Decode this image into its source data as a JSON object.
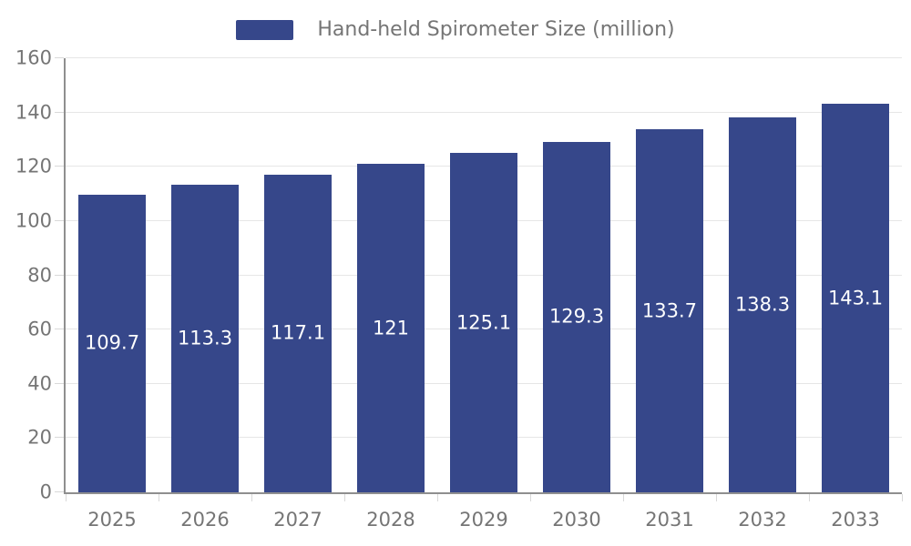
{
  "chart_data": {
    "type": "bar",
    "title": "Hand-held Spirometer Size (million)",
    "legend_position": "top",
    "categories": [
      "2025",
      "2026",
      "2027",
      "2028",
      "2029",
      "2030",
      "2031",
      "2032",
      "2033"
    ],
    "series": [
      {
        "name": "Hand-held Spirometer Size (million)",
        "values": [
          109.7,
          113.3,
          117.1,
          121,
          125.1,
          129.3,
          133.7,
          138.3,
          143.1
        ]
      }
    ],
    "value_labels": true,
    "xlabel": "",
    "ylabel": "",
    "ylim": [
      0,
      160
    ],
    "ytick_step": 20,
    "grid": true,
    "colors": {
      "bar": "#36478A",
      "value_label": "#FFFFFF",
      "axis_text": "#757575",
      "gridline": "#E6E6E6",
      "axis_line": "#8F8F8F",
      "tick": "#D9D9D9"
    }
  }
}
